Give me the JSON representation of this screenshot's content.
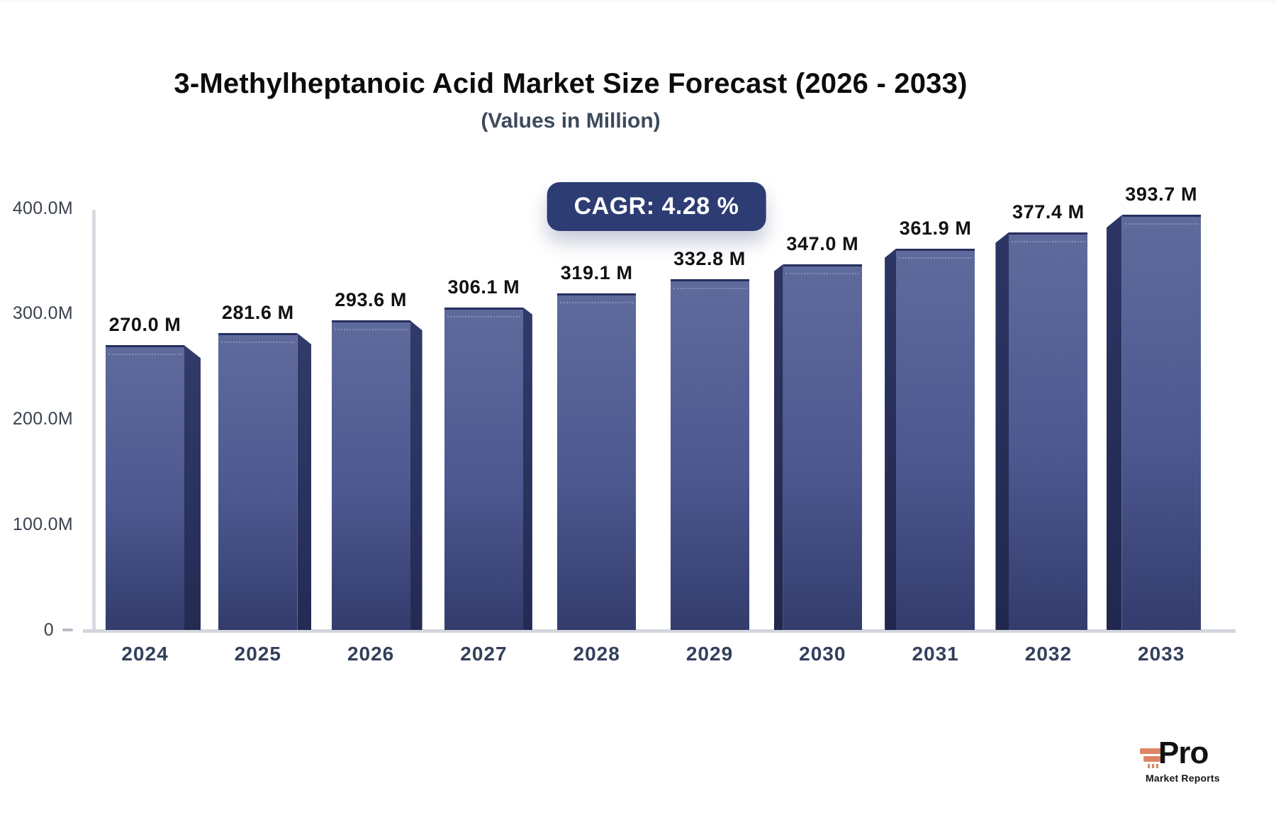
{
  "header": {
    "title": "3-Methylheptanoic Acid Market Size Forecast (2026 - 2033)",
    "subtitle": "(Values in Million)"
  },
  "cagr_badge": {
    "label": "CAGR: 4.28 %"
  },
  "chart_data": {
    "type": "bar",
    "title": "3-Methylheptanoic Acid Market Size Forecast (2026 - 2033)",
    "subtitle": "(Values in Million)",
    "categories": [
      "2024",
      "2025",
      "2026",
      "2027",
      "2028",
      "2029",
      "2030",
      "2031",
      "2032",
      "2033"
    ],
    "values": [
      270.0,
      281.6,
      293.6,
      306.1,
      319.1,
      332.8,
      347.0,
      361.9,
      377.4,
      393.7
    ],
    "value_labels": [
      "270.0 M",
      "281.6 M",
      "293.6 M",
      "306.1 M",
      "319.1 M",
      "332.8 M",
      "347.0 M",
      "361.9 M",
      "377.4 M",
      "393.7 M"
    ],
    "unit": "Million",
    "ylim": [
      0,
      400
    ],
    "ytick_values": [
      400,
      300,
      200,
      100,
      0
    ],
    "ytick_labels": [
      "400.0M",
      "300.0M",
      "200.0M",
      "100.0M",
      "0"
    ],
    "grid": false,
    "legend": false,
    "bar_style": "3d-perspective-columns"
  },
  "logo": {
    "name": "Pro",
    "tagline": "Market Reports"
  },
  "colors": {
    "bar_face_top": "#5f6a9c",
    "bar_face_bottom": "#333c6c",
    "bar_side_dark": "#283057",
    "badge_bg": "#2e3c74",
    "badge_text": "#ffffff",
    "axis": "#d5d8df",
    "title_text": "#0c0c0e",
    "subtitle_text": "#3d4a5c",
    "logo_accent": "#de8565"
  }
}
